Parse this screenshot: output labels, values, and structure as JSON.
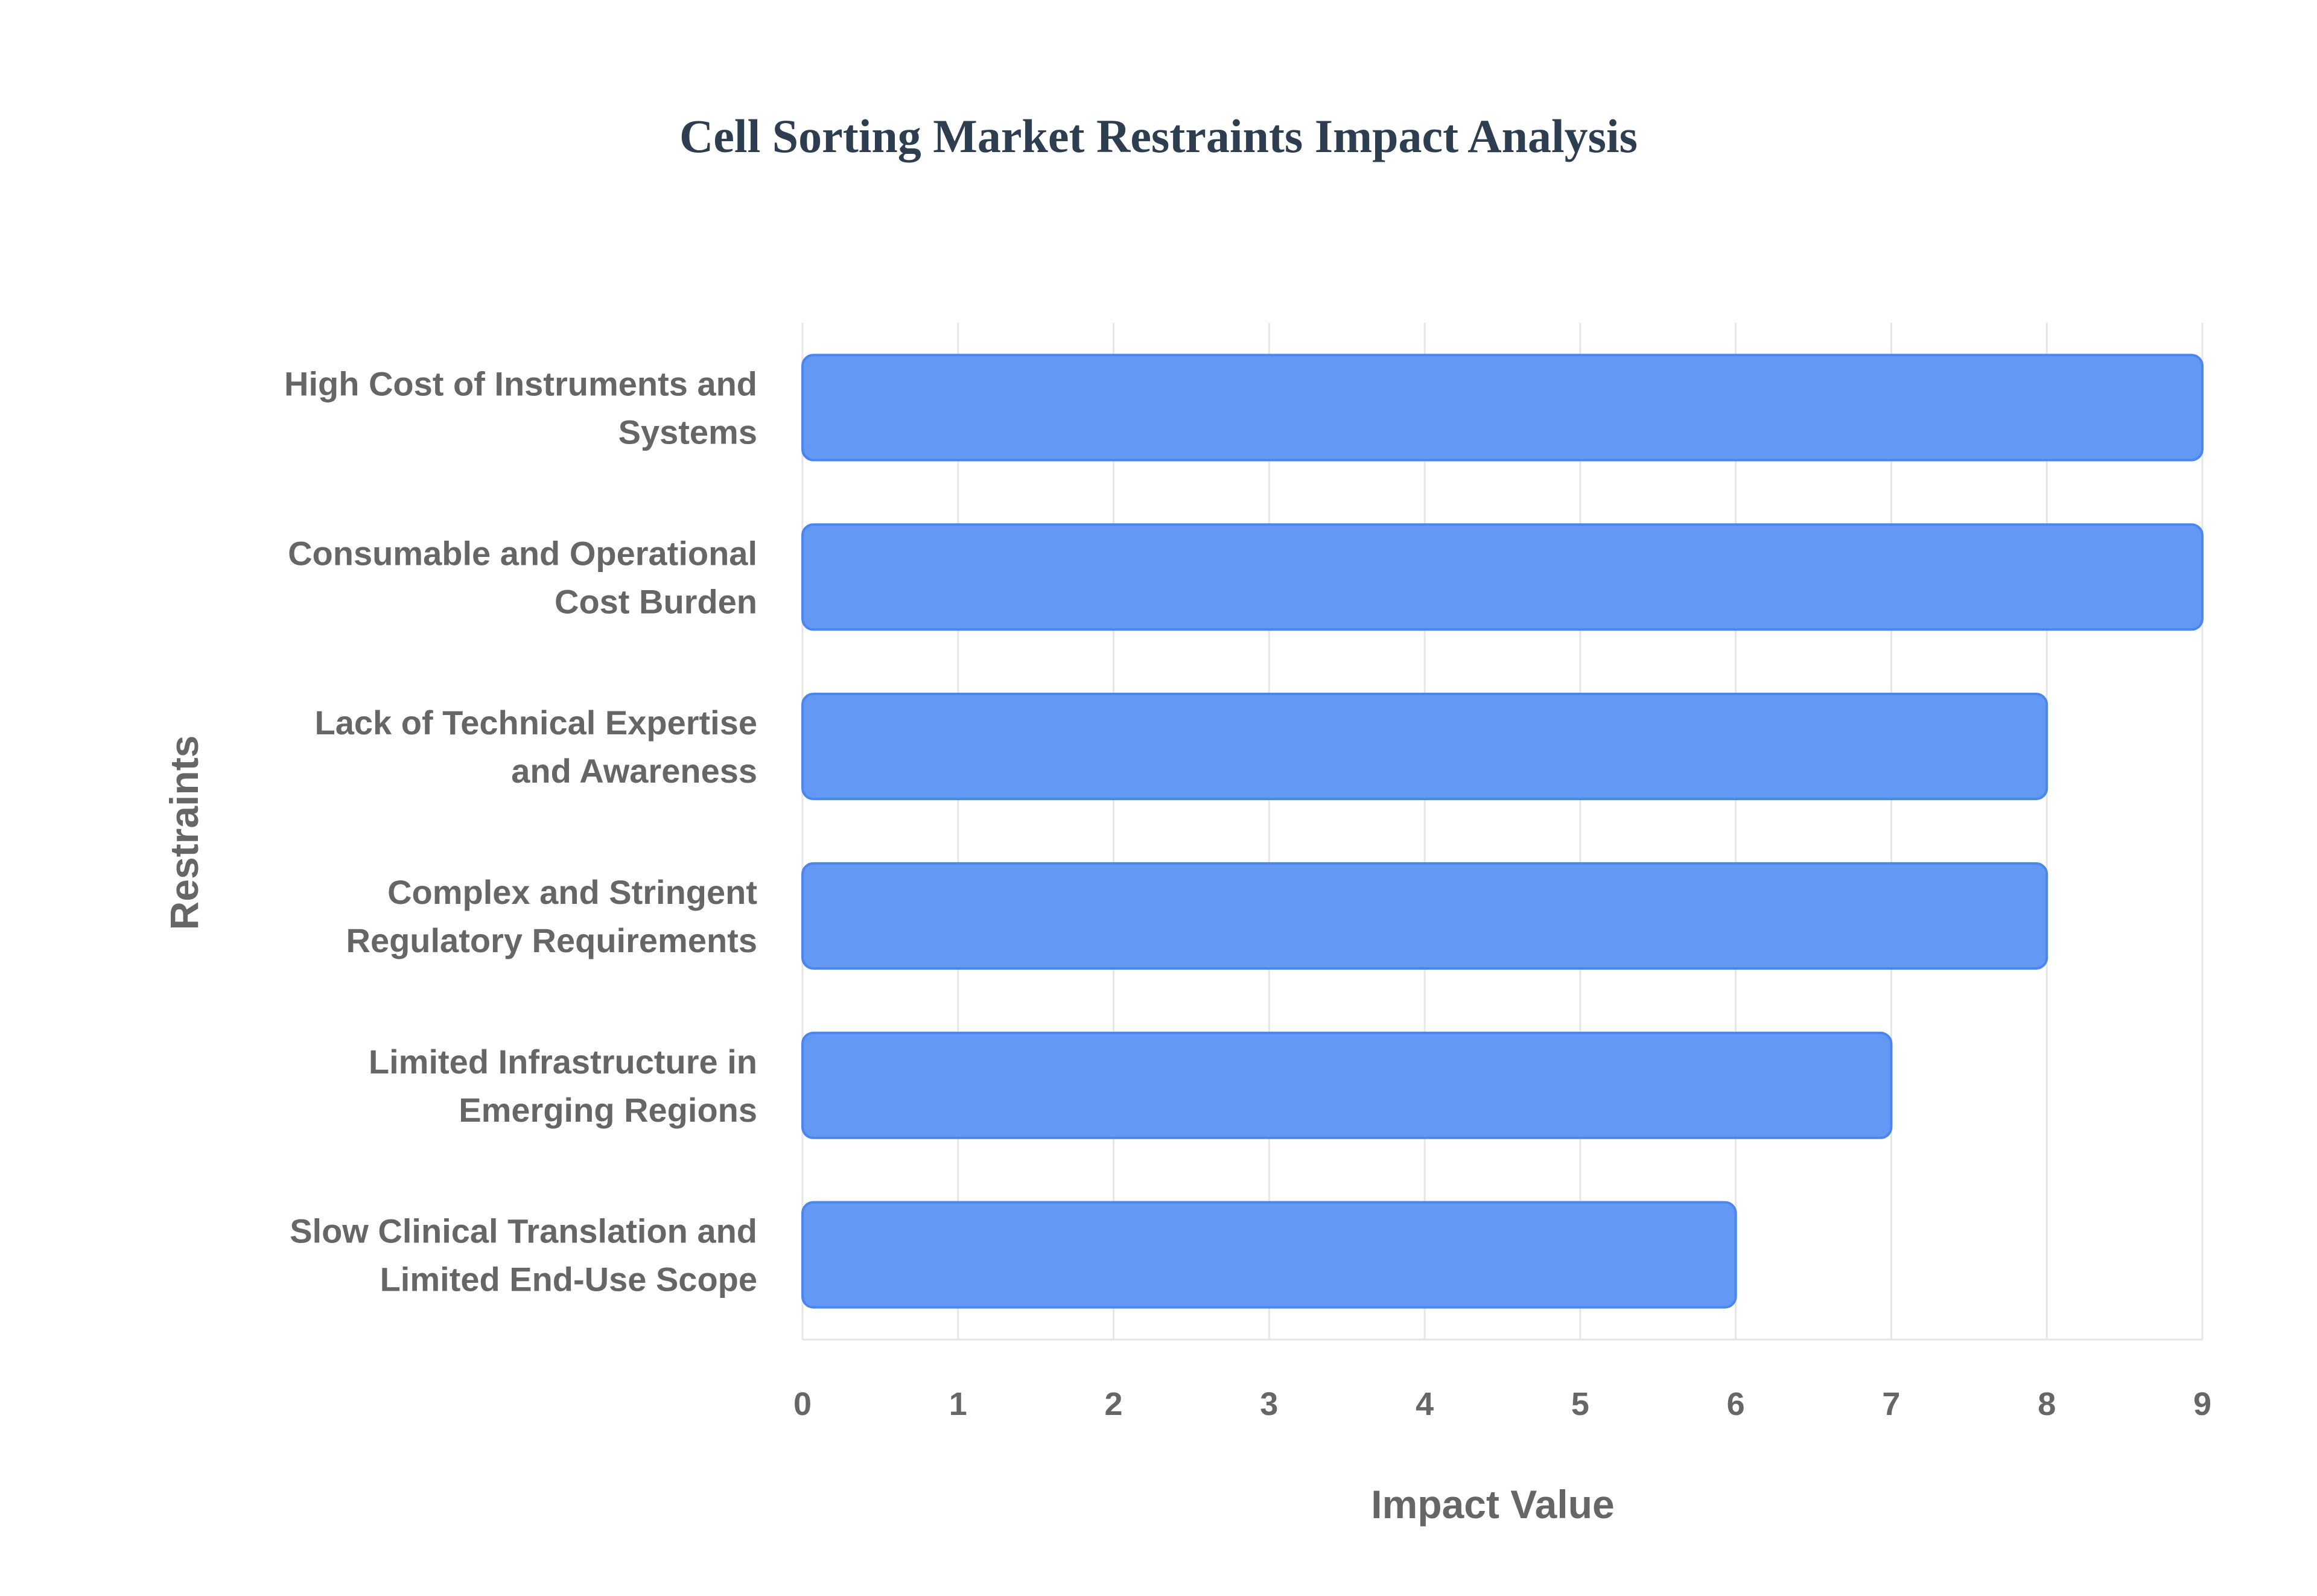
{
  "chart_data": {
    "type": "bar",
    "orientation": "horizontal",
    "title": "Cell Sorting Market Restraints Impact Analysis",
    "xlabel": "Impact Value",
    "ylabel": "Restraints",
    "categories": [
      [
        "High Cost of Instruments and",
        "Systems"
      ],
      [
        "Consumable and Operational",
        "Cost Burden"
      ],
      [
        "Lack of Technical Expertise",
        "and Awareness"
      ],
      [
        "Complex and Stringent",
        "Regulatory Requirements"
      ],
      [
        "Limited Infrastructure in",
        "Emerging Regions"
      ],
      [
        "Slow Clinical Translation and",
        "Limited End-Use Scope"
      ]
    ],
    "values": [
      9,
      9,
      8,
      8,
      7,
      6
    ],
    "xlim": [
      0,
      9
    ],
    "xticks": [
      "0",
      "1",
      "2",
      "3",
      "4",
      "5",
      "6",
      "7",
      "8",
      "9"
    ],
    "grid": true,
    "bar_color": "#6399f5",
    "bar_edge_color": "#4a86ee"
  }
}
